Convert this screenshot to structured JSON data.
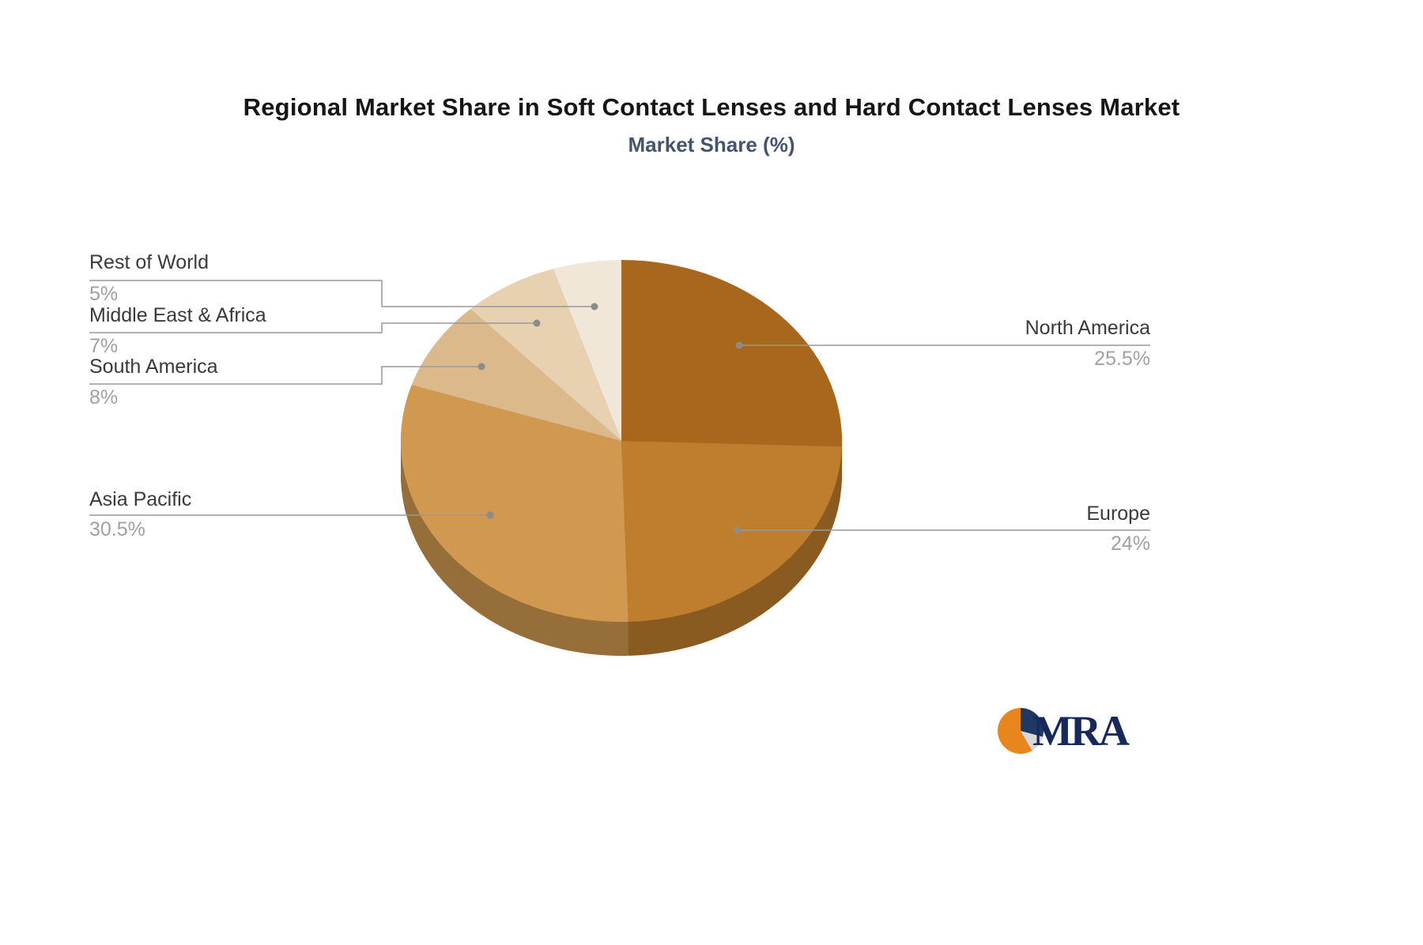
{
  "page": {
    "background": "#ffffff"
  },
  "chart_data": {
    "type": "pie",
    "title": "Regional Market Share in Soft Contact Lenses and Hard Contact Lenses Market",
    "subtitle": "Market Share (%)",
    "unit": "%",
    "start_angle": "top",
    "direction": "clockwise",
    "legend_position": "none",
    "style": {
      "name_color": "#3a3a3a",
      "value_color": "#9ea0a3",
      "line_color": "#999999",
      "dot_color": "#8c8c8c",
      "effect": "3d-depth"
    },
    "segments": [
      {
        "name": "North America",
        "value": 25.5,
        "display": "25.5%",
        "color": "#a9671d"
      },
      {
        "name": "Europe",
        "value": 24,
        "display": "24%",
        "color": "#bf7e2e"
      },
      {
        "name": "Asia Pacific",
        "value": 30.5,
        "display": "30.5%",
        "color": "#d0994f"
      },
      {
        "name": "South America",
        "value": 8,
        "display": "8%",
        "color": "#dcb98a"
      },
      {
        "name": "Middle East & Africa",
        "value": 7,
        "display": "7%",
        "color": "#e7d1b0"
      },
      {
        "name": "Rest of World",
        "value": 5,
        "display": "5%",
        "color": "#f0e7d9"
      }
    ]
  },
  "logo": {
    "text": "MRA",
    "navy": "#1f3864",
    "orange": "#e8861d"
  }
}
